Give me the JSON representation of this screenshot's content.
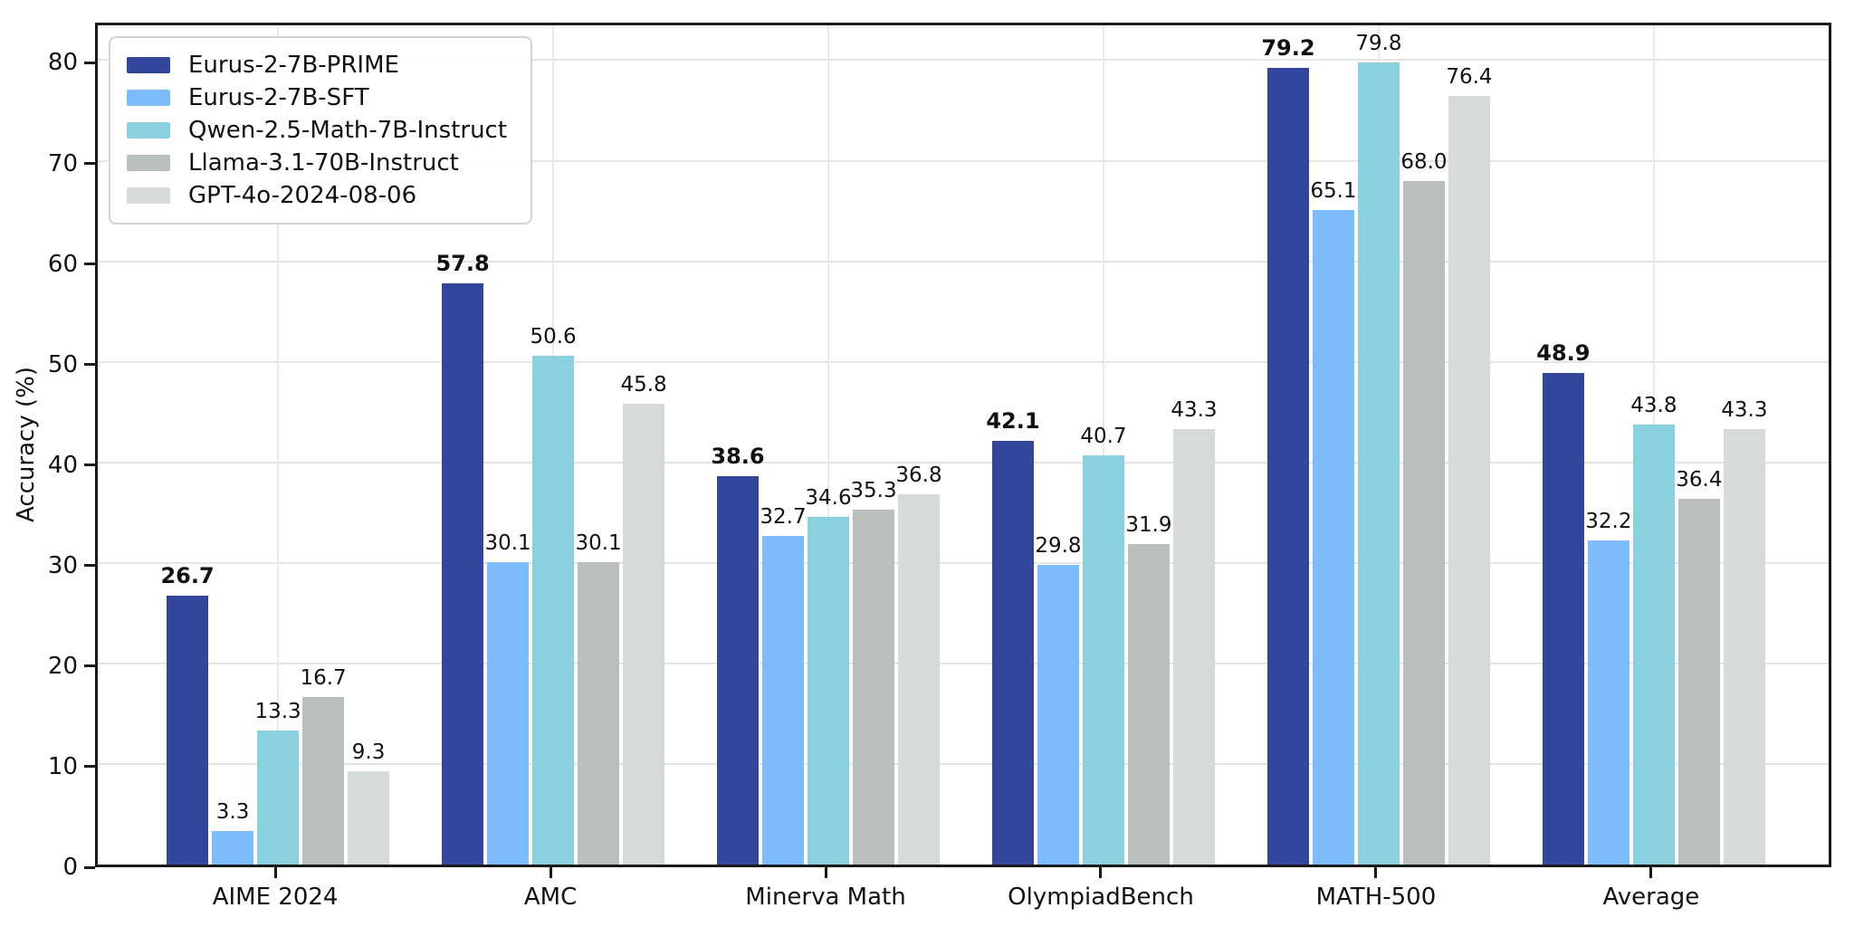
{
  "chart_data": {
    "type": "bar",
    "title": "",
    "xlabel": "",
    "ylabel": "Accuracy (%)",
    "ylim": [
      0,
      84
    ],
    "yticks": [
      0,
      10,
      20,
      30,
      40,
      50,
      60,
      70,
      80
    ],
    "grid": true,
    "legend_position": "upper-left",
    "value_label_decimals": 1,
    "categories": [
      "AIME 2024",
      "AMC",
      "Minerva Math",
      "OlympiadBench",
      "MATH-500",
      "Average"
    ],
    "series": [
      {
        "name": "Eurus-2-7B-PRIME",
        "color": "#32479c",
        "bold_labels": true,
        "values": [
          26.7,
          57.8,
          38.6,
          42.1,
          79.2,
          48.9
        ]
      },
      {
        "name": "Eurus-2-7B-SFT",
        "color": "#7dbcfa",
        "bold_labels": false,
        "values": [
          3.3,
          30.1,
          32.7,
          29.8,
          65.1,
          32.2
        ]
      },
      {
        "name": "Qwen-2.5-Math-7B-Instruct",
        "color": "#89d1df",
        "bold_labels": false,
        "values": [
          13.3,
          50.6,
          34.6,
          40.7,
          79.8,
          43.8
        ]
      },
      {
        "name": "Llama-3.1-70B-Instruct",
        "color": "#b9bfbf",
        "bold_labels": false,
        "values": [
          16.7,
          30.1,
          35.3,
          31.9,
          68.0,
          36.4
        ]
      },
      {
        "name": "GPT-4o-2024-08-06",
        "color": "#d5dbdb",
        "bold_labels": false,
        "values": [
          9.3,
          45.8,
          36.8,
          43.3,
          76.4,
          43.3
        ]
      }
    ]
  }
}
